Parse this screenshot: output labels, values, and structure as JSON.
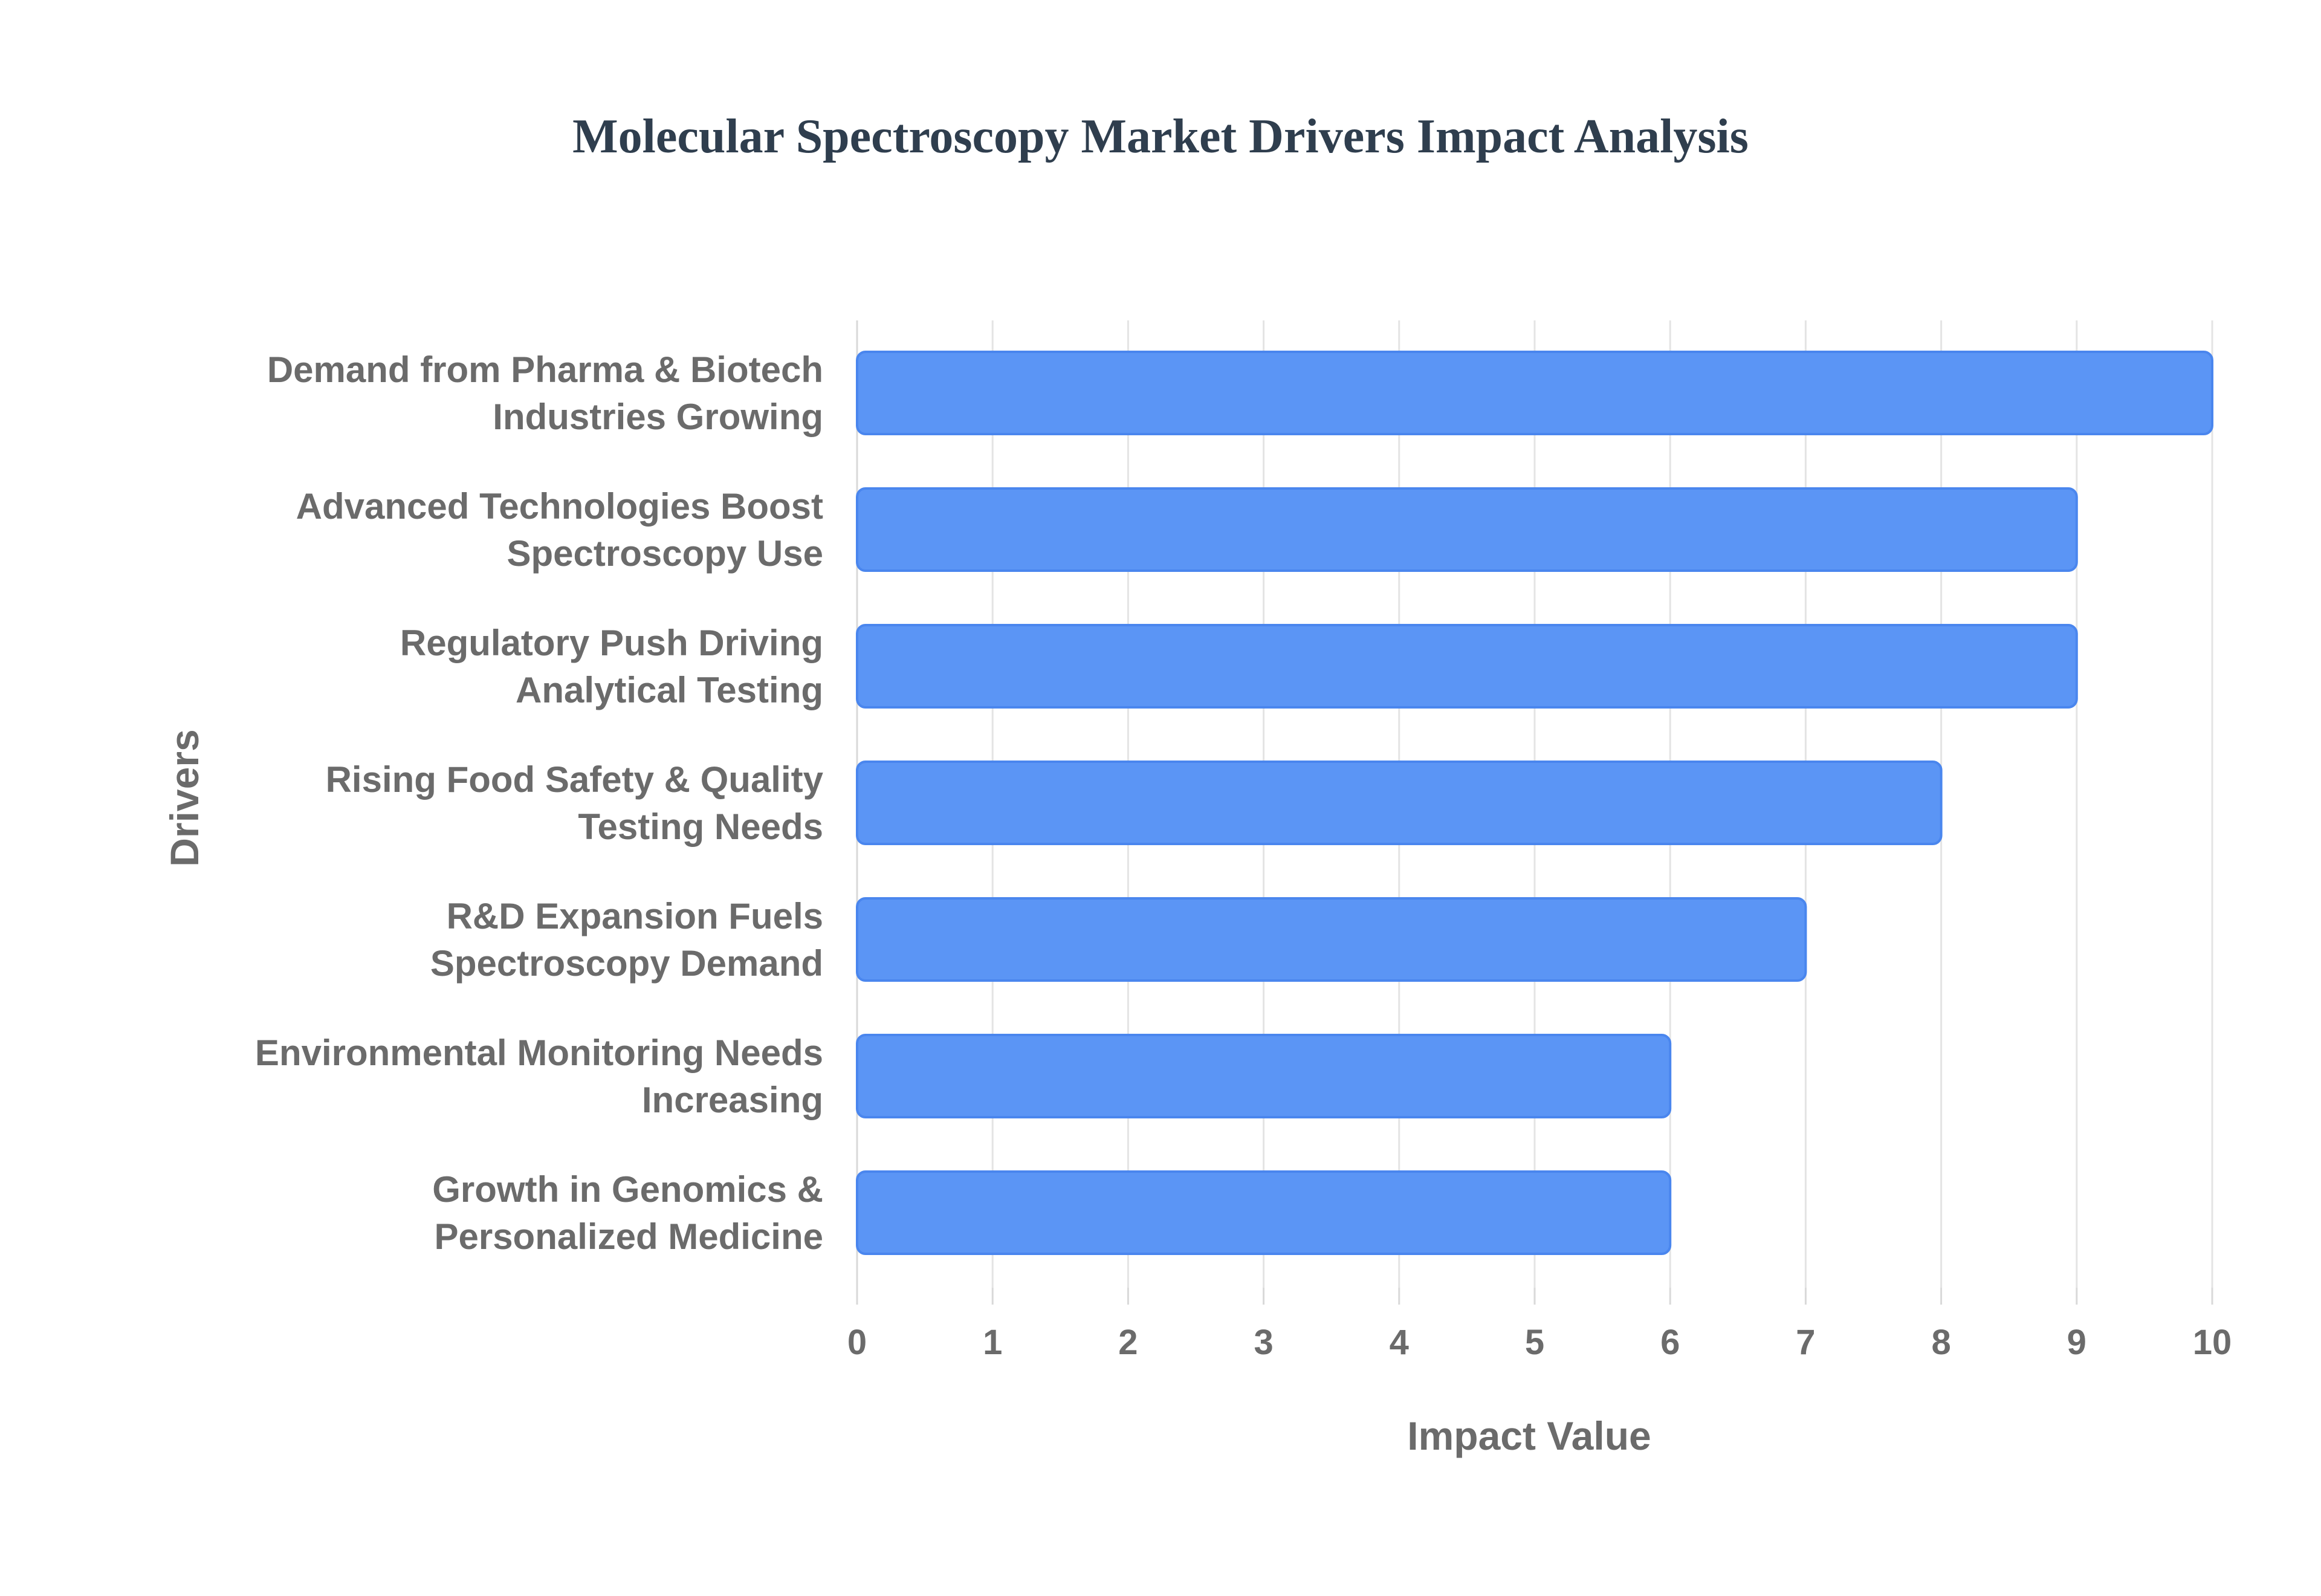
{
  "chart_data": {
    "type": "bar",
    "orientation": "horizontal",
    "title": "Molecular Spectroscopy Market Drivers Impact Analysis",
    "xlabel": "Impact Value",
    "ylabel": "Drivers",
    "xlim": [
      0,
      10
    ],
    "xticks": [
      0,
      1,
      2,
      3,
      4,
      5,
      6,
      7,
      8,
      9,
      10
    ],
    "grid": true,
    "bar_color": "#5b95f5",
    "bar_border_color": "#4a86ee",
    "categories": [
      [
        "Demand from Pharma & Biotech",
        "Industries Growing"
      ],
      [
        "Advanced Technologies Boost",
        "Spectroscopy Use"
      ],
      [
        "Regulatory Push Driving",
        "Analytical Testing"
      ],
      [
        "Rising Food Safety & Quality",
        "Testing Needs"
      ],
      [
        "R&D Expansion Fuels",
        "Spectroscopy Demand"
      ],
      [
        "Environmental Monitoring Needs",
        "Increasing"
      ],
      [
        "Growth in Genomics &",
        "Personalized Medicine"
      ]
    ],
    "values": [
      10,
      9,
      9,
      8,
      7,
      6,
      6
    ]
  }
}
